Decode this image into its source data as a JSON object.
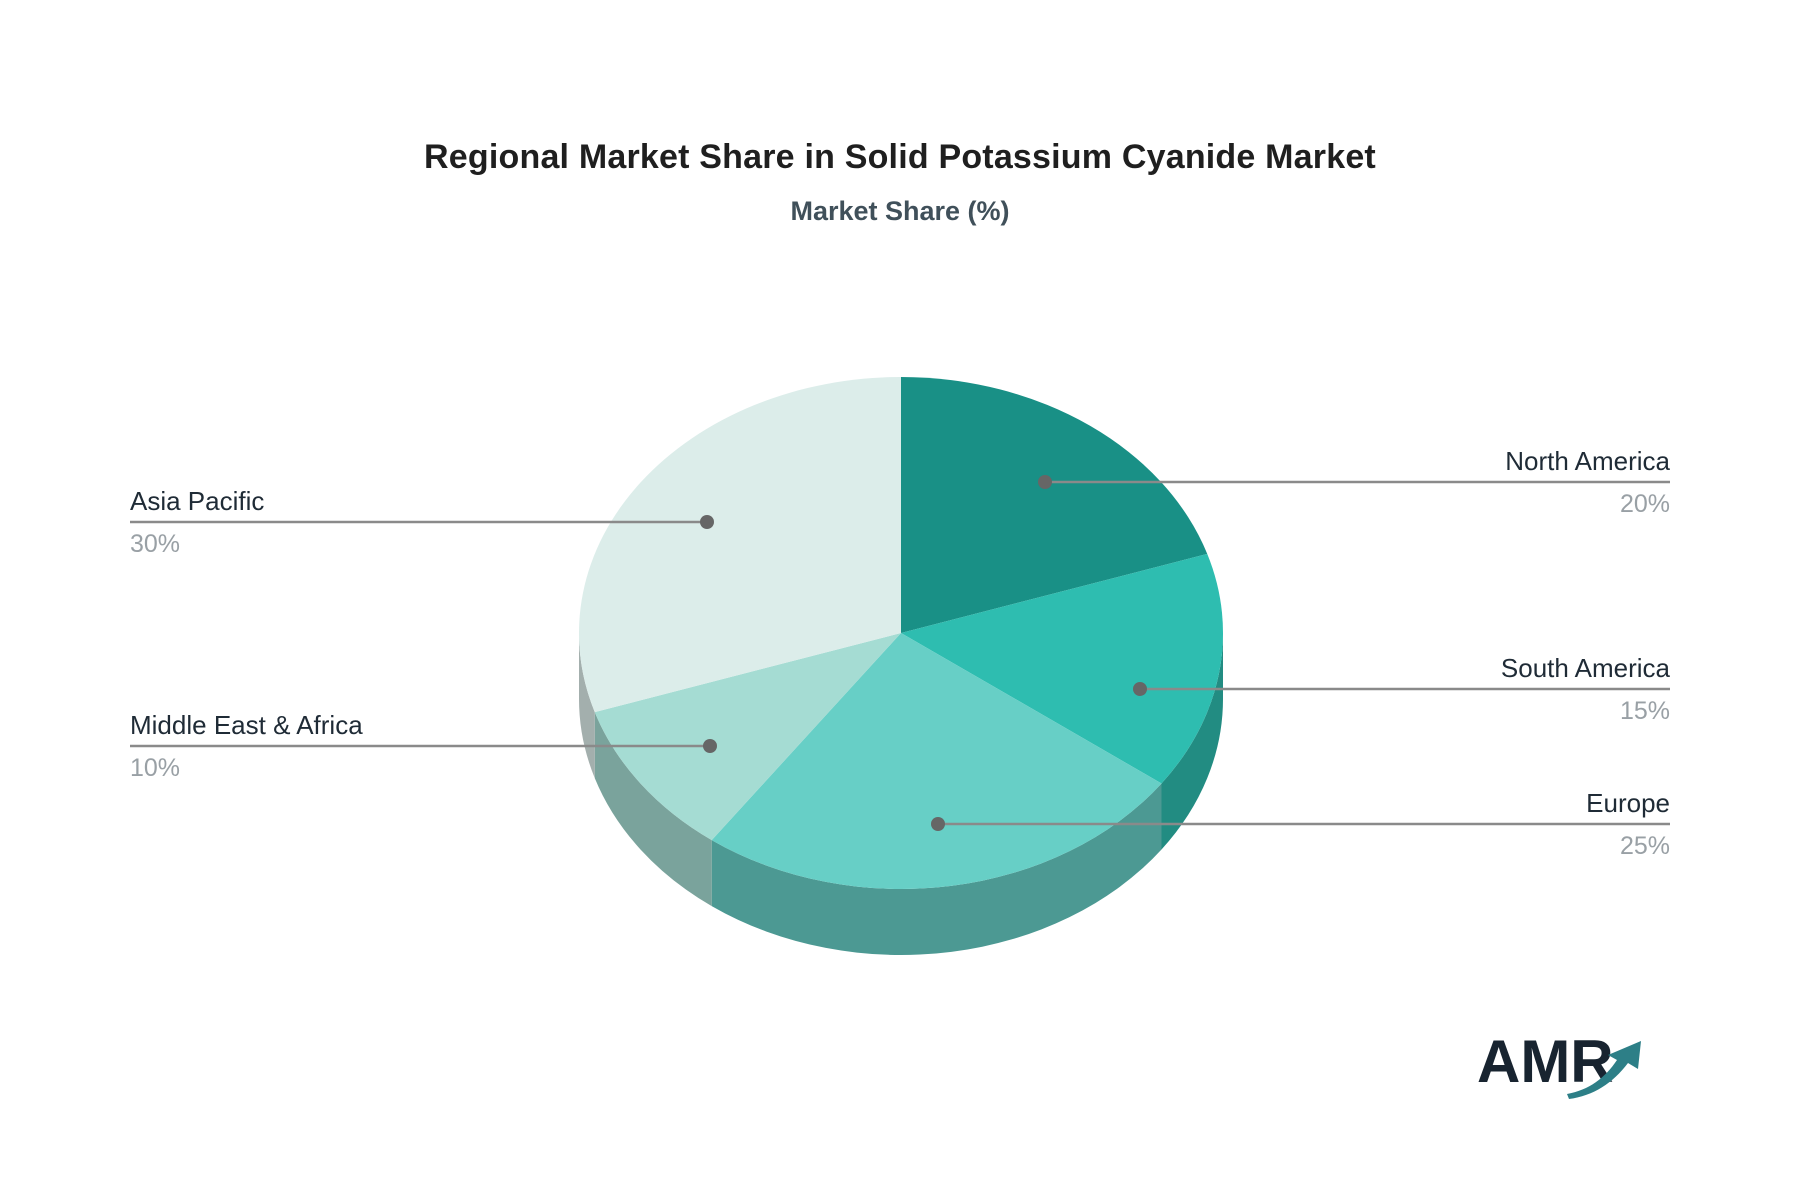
{
  "title": "Regional Market Share in Solid Potassium Cyanide Market",
  "subtitle": "Market Share (%)",
  "logo": {
    "text": "AMR"
  },
  "colors": {
    "leader_line": "#8a8a8a",
    "leader_dot": "#666666",
    "label_name": "#1f2b36",
    "label_value": "#99a0a5",
    "logo_arrow": "#2d7f87",
    "background": "#ffffff"
  },
  "chart_data": {
    "type": "pie",
    "three_d": true,
    "start_angle_deg": 0,
    "direction": "clockwise",
    "unit": "%",
    "title": "Regional Market Share in Solid Potassium Cyanide Market",
    "subtitle": "Market Share (%)",
    "legend_position": "none",
    "slices": [
      {
        "label": "North America",
        "value": 20,
        "display": "20%",
        "color": "#199086",
        "label_side": "right"
      },
      {
        "label": "South America",
        "value": 15,
        "display": "15%",
        "color": "#2ebdb0",
        "label_side": "right"
      },
      {
        "label": "Europe",
        "value": 25,
        "display": "25%",
        "color": "#67cfc6",
        "label_side": "right"
      },
      {
        "label": "Middle East & Africa",
        "value": 10,
        "display": "10%",
        "color": "#a5dcd3",
        "label_side": "left"
      },
      {
        "label": "Asia Pacific",
        "value": 30,
        "display": "30%",
        "color": "#dcedea",
        "label_side": "left"
      }
    ]
  }
}
